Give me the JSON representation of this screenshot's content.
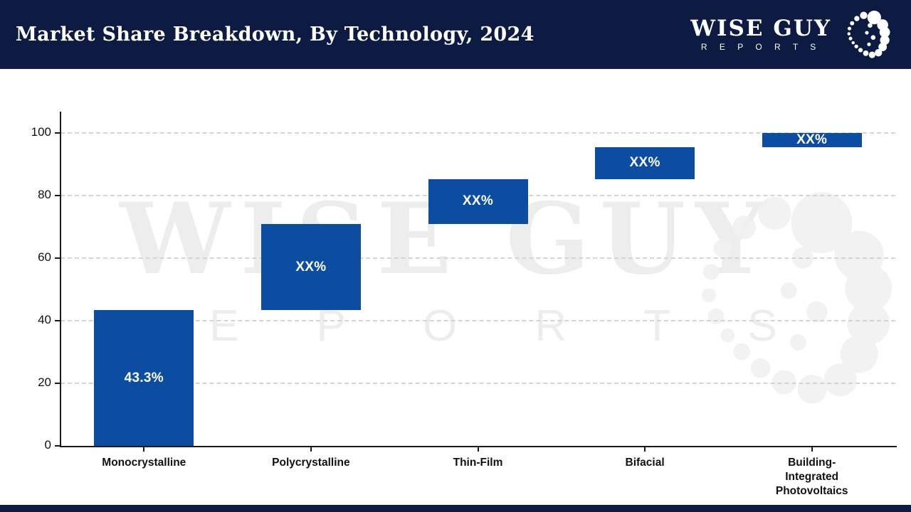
{
  "header": {
    "title": "Market Share Breakdown, By Technology, 2024",
    "logo": {
      "line1": "WISE GUY",
      "line2": "R E P O R T S"
    },
    "bg_color": "#0d1b42"
  },
  "watermark": {
    "line1": "WISE GUY",
    "line2": "R E P O R T S"
  },
  "chart_data": {
    "type": "bar",
    "variant": "waterfall",
    "title": "Market Share Breakdown, By Technology, 2024",
    "categories": [
      "Monocrystalline",
      "Polycrystalline",
      "Thin-Film",
      "Bifacial",
      "Building-\nIntegrated\nPhotovoltaics"
    ],
    "bars": [
      {
        "start": 0,
        "end": 43.3,
        "label": "43.3%"
      },
      {
        "start": 43.3,
        "end": 71.0,
        "label": "XX%"
      },
      {
        "start": 71.0,
        "end": 85.2,
        "label": "XX%"
      },
      {
        "start": 85.2,
        "end": 95.5,
        "label": "XX%"
      },
      {
        "start": 95.5,
        "end": 100.0,
        "label": "XX%"
      }
    ],
    "ylim": [
      0,
      100
    ],
    "yticks": [
      0,
      20,
      40,
      60,
      80,
      100
    ],
    "bar_color": "#0c4da2",
    "grid": {
      "horizontal": true,
      "style": "dashed",
      "color": "#d4d4d4"
    },
    "legend": null,
    "xlabel": "",
    "ylabel": ""
  }
}
